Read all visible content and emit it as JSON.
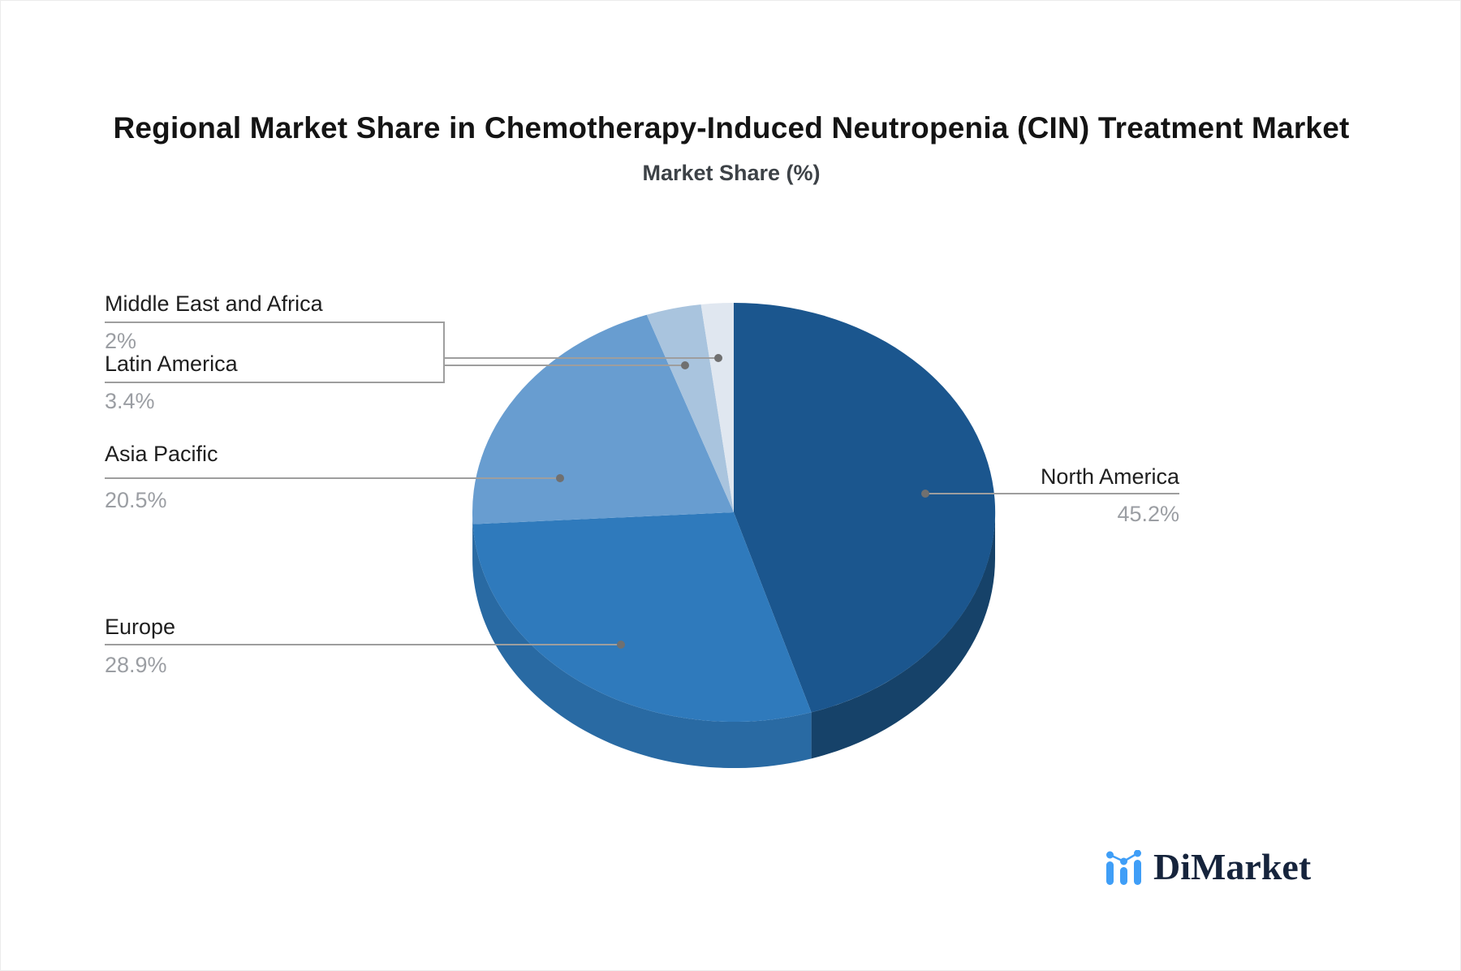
{
  "header": {
    "title": "Regional Market Share in Chemotherapy-Induced Neutropenia (CIN) Treatment Market",
    "subtitle": "Market Share (%)"
  },
  "chart_data": {
    "type": "pie",
    "style": "3d",
    "title": "Regional Market Share in Chemotherapy-Induced Neutropenia (CIN) Treatment Market",
    "subtitle": "Market Share (%)",
    "unit": "%",
    "start_angle_deg": -90,
    "direction": "clockwise",
    "legend_position": "callout-labels",
    "categories": [
      "North America",
      "Europe",
      "Asia Pacific",
      "Latin America",
      "Middle East and Africa"
    ],
    "values": [
      45.2,
      28.9,
      20.5,
      3.4,
      2
    ],
    "display_values": [
      "45.2%",
      "28.9%",
      "20.5%",
      "3.4%",
      "2%"
    ],
    "colors": [
      "#1b568e",
      "#2f7abc",
      "#689dd0",
      "#a9c4de",
      "#e0e7f0"
    ],
    "side_colors": [
      "#164269",
      "#296aa3",
      "#527ea8",
      "#8aa6c2",
      "#b8c4d4"
    ]
  },
  "logo": {
    "text": "DiMarket",
    "icon": "bar-line-chart-icon",
    "icon_color": "#3f9ef7",
    "text_color": "#16243c"
  }
}
